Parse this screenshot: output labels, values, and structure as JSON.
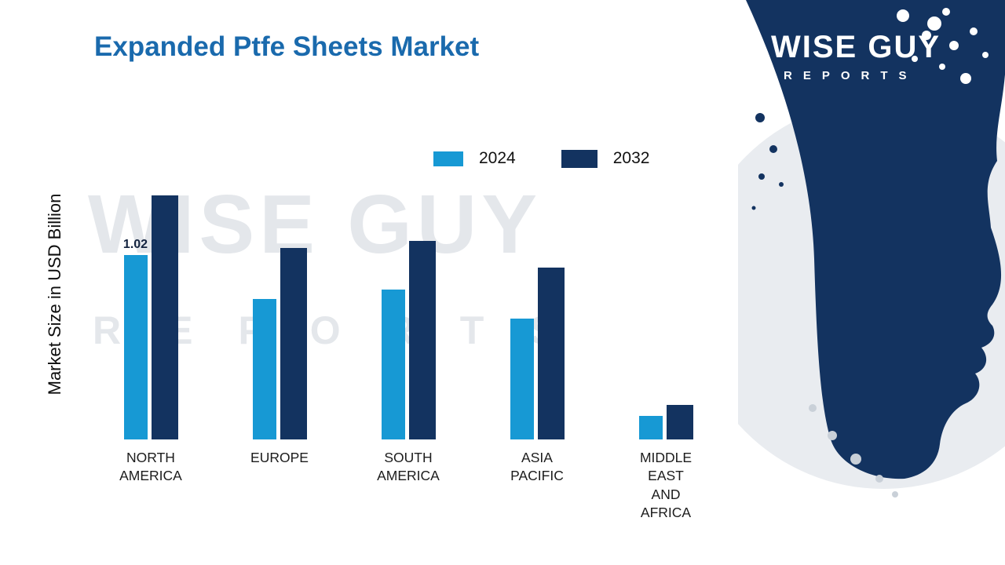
{
  "page": {
    "title": "Expanded Ptfe Sheets Market"
  },
  "brand": {
    "line1": "WISE GUY",
    "line2": "REPORTS"
  },
  "watermark": {
    "line1": "WISE GUY",
    "line2": "REPORTS"
  },
  "chart_data": {
    "type": "bar",
    "title": "Expanded Ptfe Sheets Market",
    "xlabel": "",
    "ylabel": "Market Size in USD Billion",
    "categories": [
      "NORTH AMERICA",
      "EUROPE",
      "SOUTH AMERICA",
      "ASIA PACIFIC",
      "MIDDLE EAST AND AFRICA"
    ],
    "category_lines": [
      [
        "NORTH",
        "AMERICA"
      ],
      [
        "EUROPE"
      ],
      [
        "SOUTH",
        "AMERICA"
      ],
      [
        "ASIA",
        "PACIFIC"
      ],
      [
        "MIDDLE",
        "EAST",
        "AND",
        "AFRICA"
      ]
    ],
    "series": [
      {
        "name": "2024",
        "color": "#1799d4",
        "values": [
          1.02,
          0.78,
          0.83,
          0.67,
          0.13
        ]
      },
      {
        "name": "2032",
        "color": "#133360",
        "values": [
          1.35,
          1.06,
          1.1,
          0.95,
          0.19
        ]
      }
    ],
    "annotations": [
      {
        "series": "2024",
        "category_index": 0,
        "text": "1.02"
      }
    ],
    "ylim": [
      0,
      1.4
    ],
    "grid": false,
    "legend_position": "top-center"
  },
  "colors": {
    "title_blue": "#1a6aad",
    "bar_2024": "#1799d4",
    "bar_2032": "#133360",
    "watermark_gray": "#e4e7eb",
    "decor_navy": "#133360",
    "decor_gray": "#e9ecf0",
    "background": "#ffffff"
  }
}
